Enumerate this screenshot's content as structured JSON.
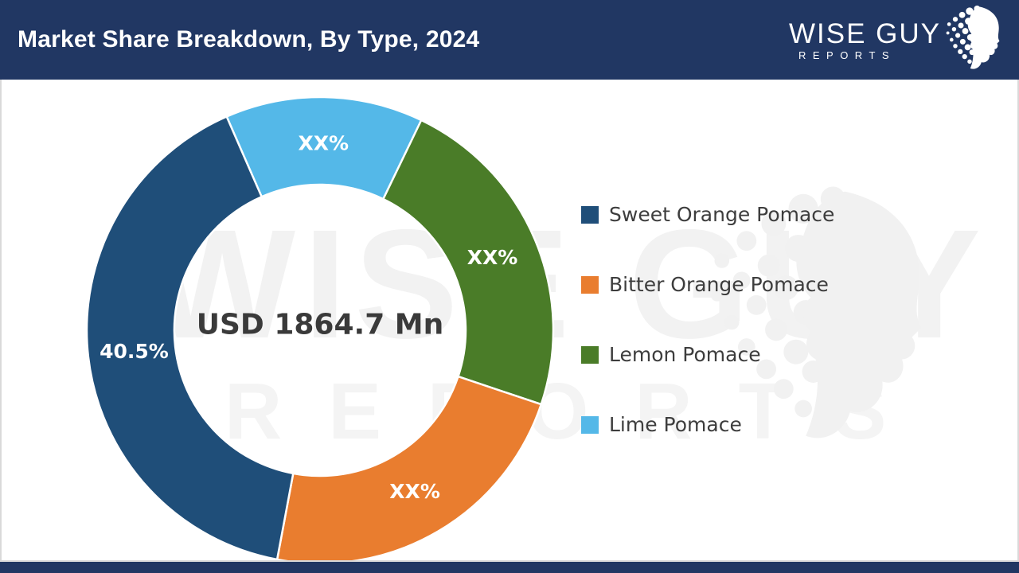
{
  "header": {
    "title": "Market Share Breakdown, By Type, 2024",
    "bar_color": "#213763",
    "logo": {
      "line1": "WISE GUY",
      "line2": "REPORTS",
      "icon": "dotted-face-profile-icon"
    }
  },
  "watermark": {
    "line1": "WISE GUY",
    "line2": "REPORTS",
    "icon": "dotted-face-profile-icon"
  },
  "chart_data": {
    "type": "donut",
    "title": "Market Share Breakdown, By Type, 2024",
    "center_label": "USD 1864.7 Mn",
    "start_angle_deg": -23.6,
    "legend_position": "right",
    "slices": [
      {
        "name": "Lime Pomace",
        "label": "XX%",
        "value_pct": 13.7,
        "color": "#54B8E8"
      },
      {
        "name": "Lemon Pomace",
        "label": "XX%",
        "value_pct": 23.0,
        "color": "#4A7C28"
      },
      {
        "name": "Bitter Orange Pomace",
        "label": "XX%",
        "value_pct": 22.8,
        "color": "#E97D2F"
      },
      {
        "name": "Sweet Orange Pomace",
        "label": "40.5%",
        "value_pct": 40.5,
        "color": "#1F4E79"
      }
    ]
  },
  "legend": {
    "items": [
      {
        "label": "Sweet Orange Pomace",
        "color": "#1F4E79"
      },
      {
        "label": "Bitter Orange Pomace",
        "color": "#E97D2F"
      },
      {
        "label": "Lemon Pomace",
        "color": "#4A7C28"
      },
      {
        "label": "Lime Pomace",
        "color": "#54B8E8"
      }
    ]
  }
}
